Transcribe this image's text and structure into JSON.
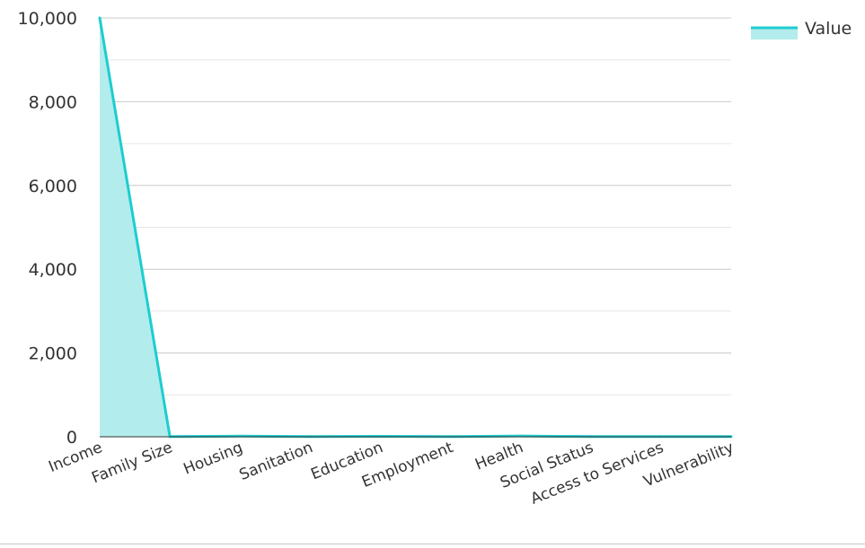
{
  "chart_data": {
    "type": "area",
    "categories": [
      "Income",
      "Family Size",
      "Housing",
      "Sanitation",
      "Education",
      "Employment",
      "Health",
      "Social Status",
      "Access to Services",
      "Vulnerability"
    ],
    "series": [
      {
        "name": "Value",
        "values": [
          10000,
          5,
          15,
          5,
          10,
          5,
          20,
          5,
          5,
          5
        ]
      }
    ],
    "yticks": [
      "0",
      "2,000",
      "4,000",
      "6,000",
      "8,000",
      "10,000"
    ],
    "ylim": [
      0,
      10000
    ],
    "grid": true,
    "legend_position": "top-right",
    "colors": {
      "line": "#1dcdd0",
      "fill": "#b3ecec",
      "grid_major": "#c8c8c8",
      "grid_minor": "#e6e6e6",
      "axis": "#333333"
    }
  }
}
